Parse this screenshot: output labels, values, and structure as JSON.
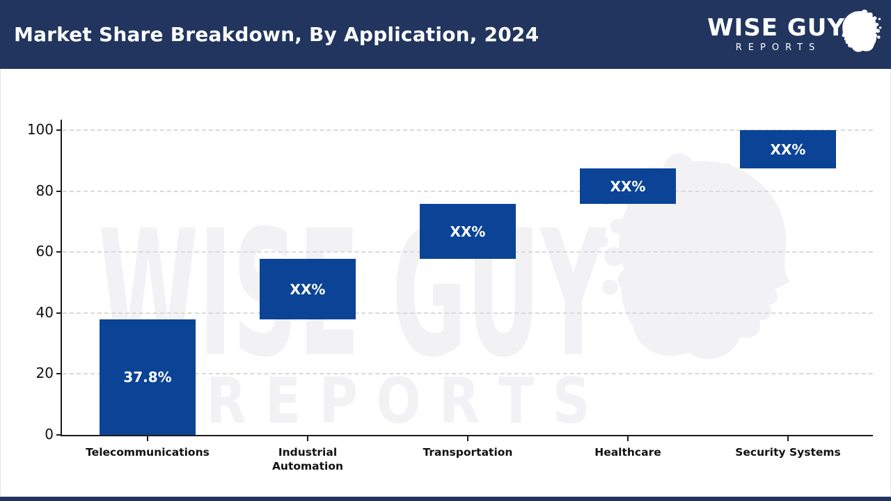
{
  "header": {
    "title": "Market Share Breakdown, By Application, 2024",
    "logo": {
      "line1": "WISE GUY",
      "line2": "REPORTS"
    }
  },
  "icons": {
    "logo_face": "face-profile-dots"
  },
  "watermark": {
    "line1": "WISE GUY",
    "line2": "R E P O R T S"
  },
  "colors": {
    "header_bg": "#21355f",
    "bar": "#0b4396",
    "grid": "#d9d9d9",
    "axis": "#1a1a1a",
    "watermark": "#f2f2f4",
    "bar_label": "#ffffff"
  },
  "chart_data": {
    "type": "bar",
    "subtype": "waterfall",
    "title": "Market Share Breakdown, By Application, 2024",
    "categories": [
      "Telecommunications",
      "Industrial\nAutomation",
      "Transportation",
      "Healthcare",
      "Security Systems"
    ],
    "bars": [
      {
        "category": "Telecommunications",
        "start": 0,
        "end": 37.8,
        "label": "37.8%"
      },
      {
        "category": "Industrial Automation",
        "start": 37.8,
        "end": 57.8,
        "label": "XX%"
      },
      {
        "category": "Transportation",
        "start": 57.8,
        "end": 75.7,
        "label": "XX%"
      },
      {
        "category": "Healthcare",
        "start": 75.7,
        "end": 87.4,
        "label": "XX%"
      },
      {
        "category": "Security Systems",
        "start": 87.4,
        "end": 100,
        "label": "XX%"
      }
    ],
    "xlabel": "",
    "ylabel": "",
    "ylim": [
      0,
      100
    ],
    "yticks": [
      0,
      20,
      40,
      60,
      80,
      100
    ],
    "grid": "horizontal-dashed",
    "legend": "none"
  }
}
